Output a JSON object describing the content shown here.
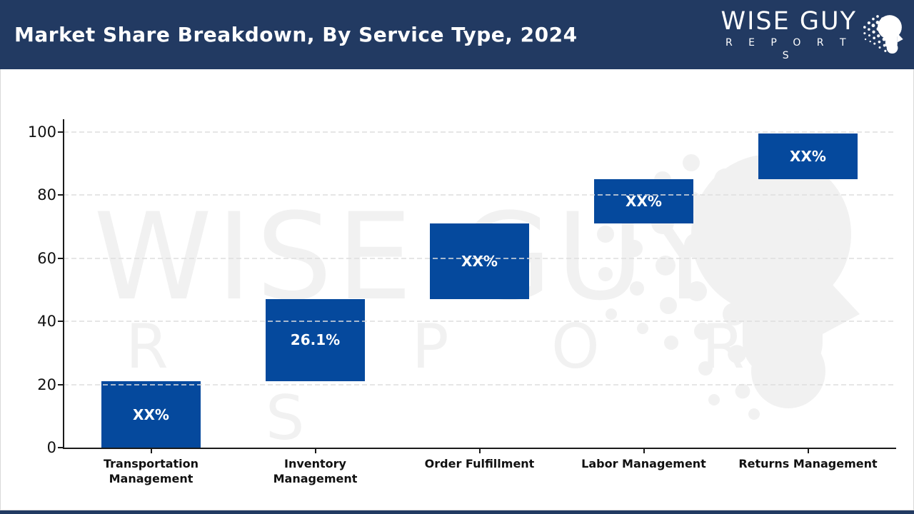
{
  "header": {
    "title": "Market Share Breakdown, By Service Type, 2024",
    "bg_color": "#223A62"
  },
  "logo": {
    "line1": "WISE GUY",
    "line2": "R E P O R T S"
  },
  "watermark": {
    "line1": "WISE GUY",
    "line2": "R E P O R T S"
  },
  "chart_data": {
    "type": "bar",
    "subtype": "floating-segment-bars",
    "title": "Market Share Breakdown, By Service Type, 2024",
    "categories": [
      "Transportation\nManagement",
      "Inventory\nManagement",
      "Order Fulfillment",
      "Labor Management",
      "Returns Management"
    ],
    "bars": [
      {
        "start": 0,
        "end": 21,
        "label": "XX%"
      },
      {
        "start": 21,
        "end": 47.1,
        "label": "26.1%"
      },
      {
        "start": 47,
        "end": 71,
        "label": "XX%"
      },
      {
        "start": 71,
        "end": 85,
        "label": "XX%"
      },
      {
        "start": 85,
        "end": 99.5,
        "label": "XX%"
      }
    ],
    "xlabel": "",
    "ylabel": "",
    "ylim": [
      0,
      100
    ],
    "yticks": [
      0,
      20,
      40,
      60,
      80,
      100
    ],
    "grid": "horizontal-dashed",
    "legend": "none",
    "bar_color": "#05499D",
    "bar_label_color": "#FFFFFF"
  }
}
